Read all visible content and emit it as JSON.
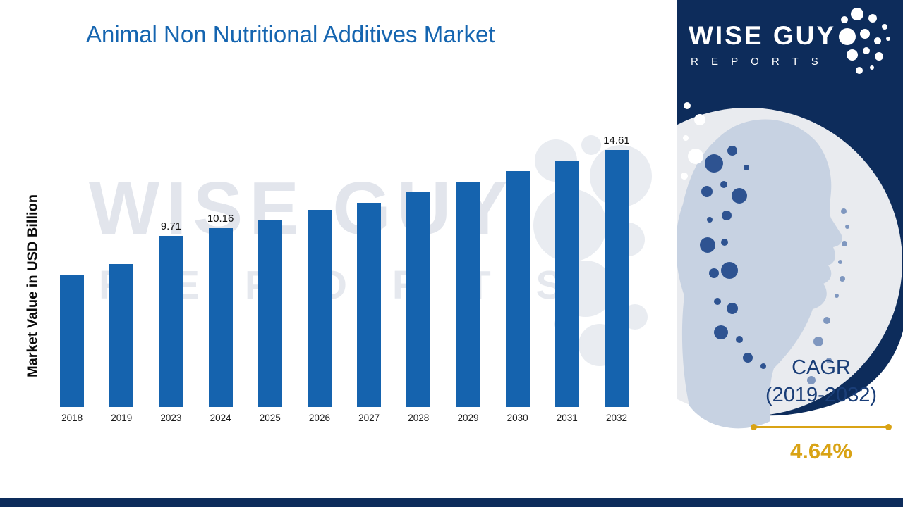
{
  "page": {
    "title": "Animal Non Nutritional Additives Market"
  },
  "brand": {
    "name_line1": "WISE GUY",
    "name_line2": "R E P O R T S"
  },
  "watermark": {
    "line1": "WISE GUY",
    "line2": "R E P O R T S"
  },
  "cagr": {
    "label": "CAGR",
    "range": "(2019-2032)",
    "value": "4.64%"
  },
  "chart_data": {
    "type": "bar",
    "title": "Animal Non Nutritional Additives Market",
    "xlabel": "",
    "ylabel": "Market Value in USD Billion",
    "categories": [
      "2018",
      "2019",
      "2023",
      "2024",
      "2025",
      "2026",
      "2027",
      "2028",
      "2029",
      "2030",
      "2031",
      "2032"
    ],
    "values": [
      7.5,
      8.1,
      9.71,
      10.16,
      10.6,
      11.2,
      11.6,
      12.2,
      12.8,
      13.4,
      14.0,
      14.61
    ],
    "bar_labels": [
      "",
      "",
      "9.71",
      "10.16",
      "",
      "",
      "",
      "",
      "",
      "",
      "",
      "14.61"
    ],
    "ylim": [
      0,
      16
    ],
    "grid": false,
    "legend": "none",
    "bar_color": "#1563ae"
  },
  "colors": {
    "bar_blue": "#1563ae",
    "title_blue": "#1565b0",
    "panel_navy": "#0d2c5b",
    "gold": "#d9a315",
    "cagr_navy": "#1a3e78",
    "circle_light": "#e9ebef",
    "face_fill": "#c7d2e2"
  }
}
